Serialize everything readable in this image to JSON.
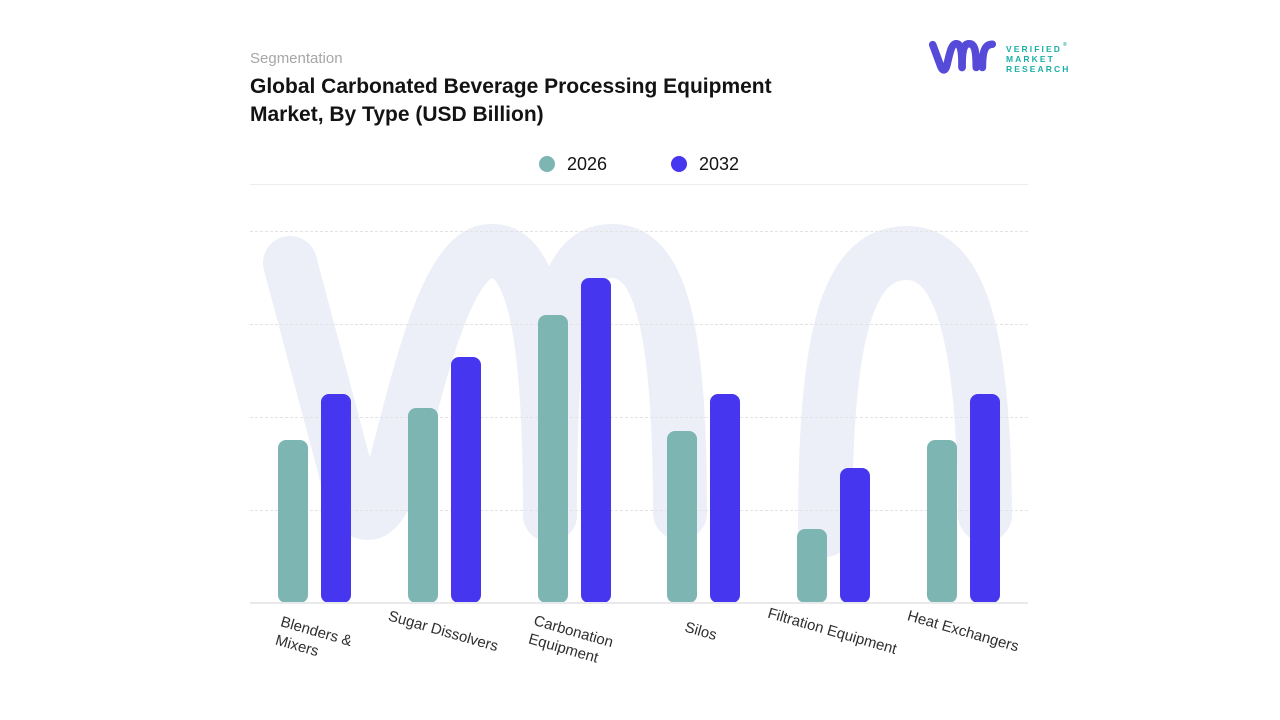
{
  "header": {
    "eyebrow": "Segmentation",
    "title_line1": "Global Carbonated Beverage Processing Equipment",
    "title_line2": "Market, By Type (USD Billion)"
  },
  "brand": {
    "lines": [
      "VERIFIED",
      "MARKET",
      "RESEARCH"
    ],
    "registered_mark": "®",
    "mark_color": "#554bd8",
    "text_color": "#1aafa6"
  },
  "chart_data": {
    "type": "bar",
    "title": "Global Carbonated Beverage Processing Equipment Market, By Type (USD Billion)",
    "categories": [
      "Blenders & Mixers",
      "Sugar Dissolvers",
      "Carbonation Equipment",
      "Silos",
      "Filtration Equipment",
      "Heat Exchangers"
    ],
    "categories_display": [
      [
        "Blenders &",
        "Mixers"
      ],
      [
        "Sugar Dissolvers"
      ],
      [
        "Carbonation",
        "Equipment"
      ],
      [
        "Silos"
      ],
      [
        "Filtration Equipment"
      ],
      [
        "Heat Exchangers"
      ]
    ],
    "series": [
      {
        "name": "2026",
        "color": "#7db5b3",
        "values": [
          1.75,
          2.1,
          3.1,
          1.85,
          0.8,
          1.75
        ]
      },
      {
        "name": "2032",
        "color": "#4636ef",
        "values": [
          2.25,
          2.65,
          3.5,
          2.25,
          1.45,
          2.25
        ]
      }
    ],
    "xlabel": "",
    "ylabel": "",
    "ylim": [
      0,
      4.5
    ],
    "value_axis_labels_shown": false,
    "gridline_count": 4,
    "grid_style": "dashed horizontal",
    "legend_position": "top-center",
    "colors": {
      "gridline": "#e3e3e3",
      "axis_line": "#e9e9ec",
      "watermark": "#edeff8"
    }
  }
}
